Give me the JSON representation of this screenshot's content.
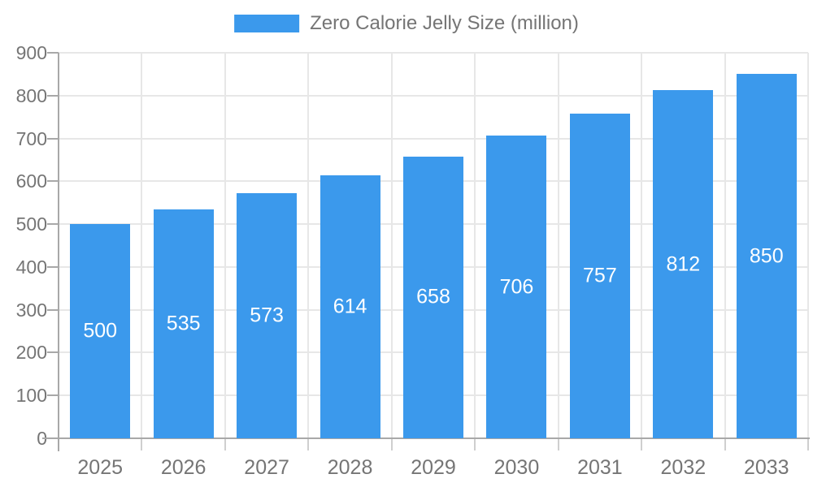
{
  "chart_data": {
    "type": "bar",
    "title": "",
    "legend": {
      "label": "Zero Calorie Jelly Size (million)",
      "position": "top-center"
    },
    "categories": [
      "2025",
      "2026",
      "2027",
      "2028",
      "2029",
      "2030",
      "2031",
      "2032",
      "2033"
    ],
    "values": [
      500,
      535,
      573,
      614,
      658,
      706,
      757,
      812,
      850
    ],
    "value_labels_shown": true,
    "xlabel": "",
    "ylabel": "",
    "ylim": [
      0,
      900
    ],
    "yticks": [
      0,
      100,
      200,
      300,
      400,
      500,
      600,
      700,
      800,
      900
    ],
    "grid": true,
    "legend_position": "top-center",
    "colors": {
      "bar": "#3b99ec",
      "bar_label": "#ffffff",
      "axis_label": "#757575",
      "axis_line": "#a8a8a8",
      "x_tick": "#cfcfcf",
      "y_tick": "#a8a8a8",
      "gridline": "#e7e7e7",
      "legend_text": "#757575"
    }
  }
}
